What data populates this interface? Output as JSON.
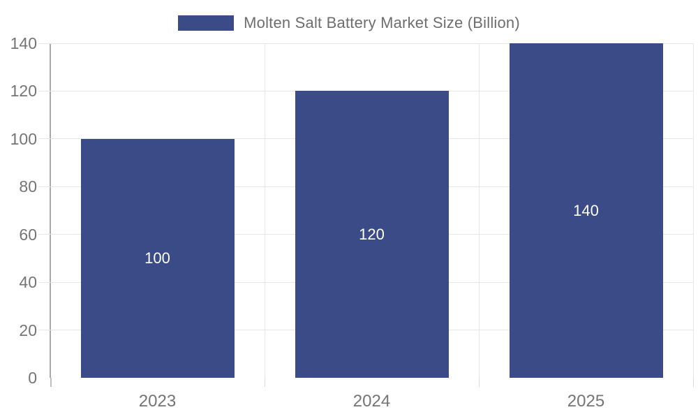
{
  "legend": {
    "label": "Molten Salt Battery Market Size (Billion)"
  },
  "chart_data": {
    "type": "bar",
    "title": "",
    "xlabel": "",
    "ylabel": "",
    "categories": [
      "2023",
      "2024",
      "2025"
    ],
    "series": [
      {
        "name": "Molten Salt Battery Market Size (Billion)",
        "values": [
          100,
          120,
          140
        ]
      }
    ],
    "data_labels": [
      "100",
      "120",
      "140"
    ],
    "ylim": [
      0,
      140
    ],
    "yticks": [
      0,
      20,
      40,
      60,
      80,
      100,
      120,
      140
    ],
    "grid": true,
    "legend_position": "top"
  },
  "colors": {
    "bar": "#3b4b87",
    "grid_line": "#e6e6e6",
    "axis_line": "#a9a9a9",
    "tick_label": "#757575",
    "legend_text": "#6e6e6e",
    "data_label": "#ffffff",
    "background": "#ffffff"
  }
}
